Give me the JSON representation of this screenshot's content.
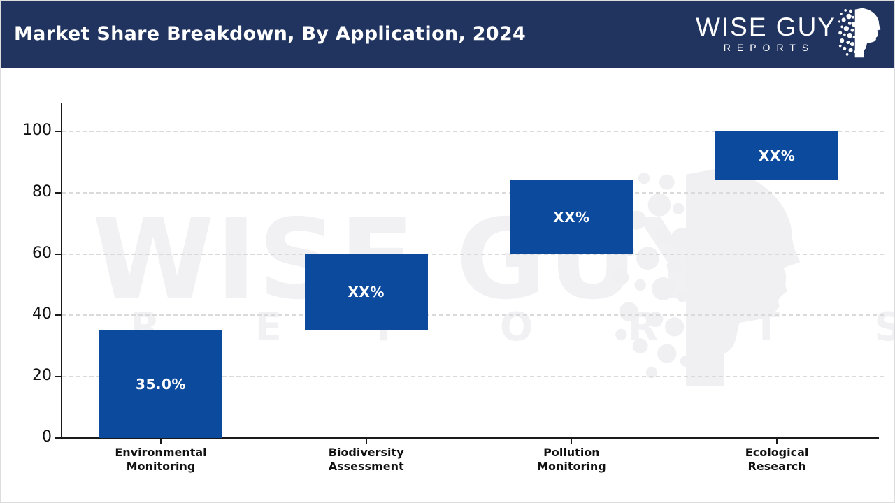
{
  "header": {
    "title": "Market Share Breakdown, By Application, 2024",
    "logo": {
      "line1": "WISE GUY",
      "line2": "REPORTS"
    }
  },
  "watermark": {
    "line1": "WISE GUY",
    "line2": "R E P O R T S"
  },
  "chart_data": {
    "type": "bar",
    "variant": "waterfall",
    "title": "Market Share Breakdown, By Application, 2024",
    "categories": [
      "Environmental\nMonitoring",
      "Biodiversity\nAssessment",
      "Pollution\nMonitoring",
      "Ecological\nResearch"
    ],
    "segments": [
      {
        "category": "Environmental Monitoring",
        "start": 0,
        "end": 35,
        "label": "35.0%"
      },
      {
        "category": "Biodiversity Assessment",
        "start": 35,
        "end": 60,
        "label": "XX%"
      },
      {
        "category": "Pollution Monitoring",
        "start": 60,
        "end": 84,
        "label": "XX%"
      },
      {
        "category": "Ecological Research",
        "start": 84,
        "end": 100,
        "label": "XX%"
      }
    ],
    "yticks": [
      0,
      20,
      40,
      60,
      80,
      100
    ],
    "ylim": [
      0,
      105
    ],
    "grid": "horizontal-dashed",
    "legend": "none",
    "bar_color": "#0b4a9d"
  },
  "colors": {
    "header_bg": "#20345f",
    "bar": "#0b4a9d",
    "gridline": "#dadada",
    "axis": "#1a1a1a",
    "watermark": "#f1f1f4"
  }
}
